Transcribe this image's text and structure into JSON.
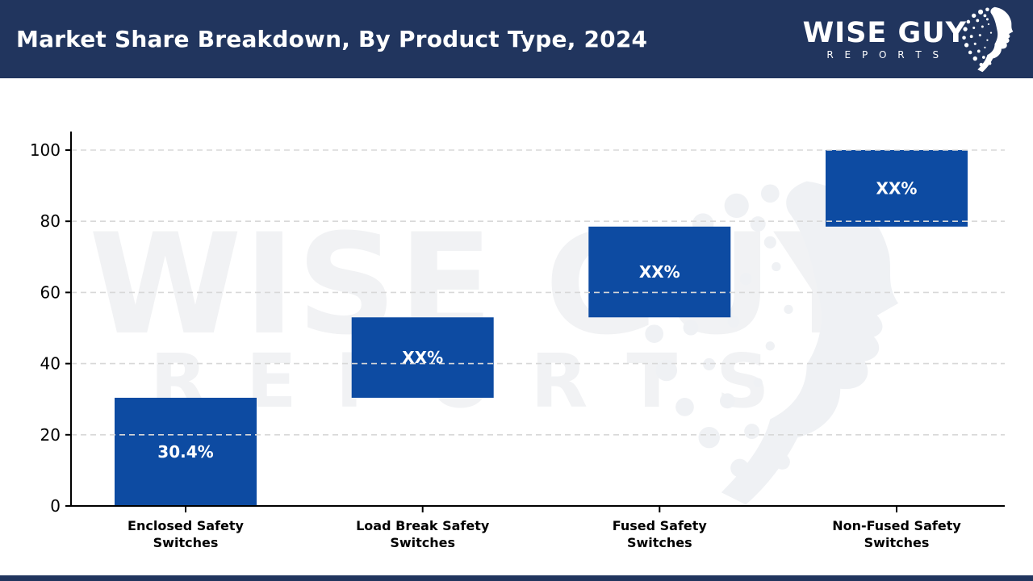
{
  "header": {
    "title": "Market Share Breakdown, By Product Type, 2024",
    "logo": {
      "wordmark": "WISE GUY",
      "subtext": "R E P O R T S"
    }
  },
  "watermark": {
    "line1": "WISE GUY",
    "line2": "R E P O R T S"
  },
  "colors": {
    "header_bg": "#21355e",
    "footer_bg": "#21355e",
    "title_text": "#ffffff",
    "bar": "#0d4ba2",
    "bar_label": "#ffffff",
    "gridline": "#d8d8d8",
    "axis": "#000000",
    "tick_label": "#000000",
    "watermark_text": "#f1f2f4",
    "watermark_dots": "#eff1f4"
  },
  "chart_data": {
    "type": "bar",
    "subtype": "waterfall",
    "title": "Market Share Breakdown, By Product Type, 2024",
    "xlabel": "",
    "ylabel": "",
    "ylim": [
      0,
      100
    ],
    "yticks": [
      0,
      20,
      40,
      60,
      80,
      100
    ],
    "grid": "horizontal-dashed",
    "legend": "none",
    "categories": [
      "Enclosed Safety Switches",
      "Load Break Safety Switches",
      "Fused Safety Switches",
      "Non-Fused Safety Switches"
    ],
    "category_lines": [
      [
        "Enclosed Safety",
        "Switches"
      ],
      [
        "Load Break Safety",
        "Switches"
      ],
      [
        "Fused Safety",
        "Switches"
      ],
      [
        "Non-Fused Safety",
        "Switches"
      ]
    ],
    "segments": [
      {
        "category": "Enclosed Safety Switches",
        "start": 0,
        "end": 30.4,
        "label": "30.4%"
      },
      {
        "category": "Load Break Safety Switches",
        "start": 30.4,
        "end": 53,
        "label": "XX%"
      },
      {
        "category": "Fused Safety Switches",
        "start": 53,
        "end": 78.5,
        "label": "XX%"
      },
      {
        "category": "Non-Fused Safety Switches",
        "start": 78.5,
        "end": 100,
        "label": "XX%"
      }
    ]
  }
}
